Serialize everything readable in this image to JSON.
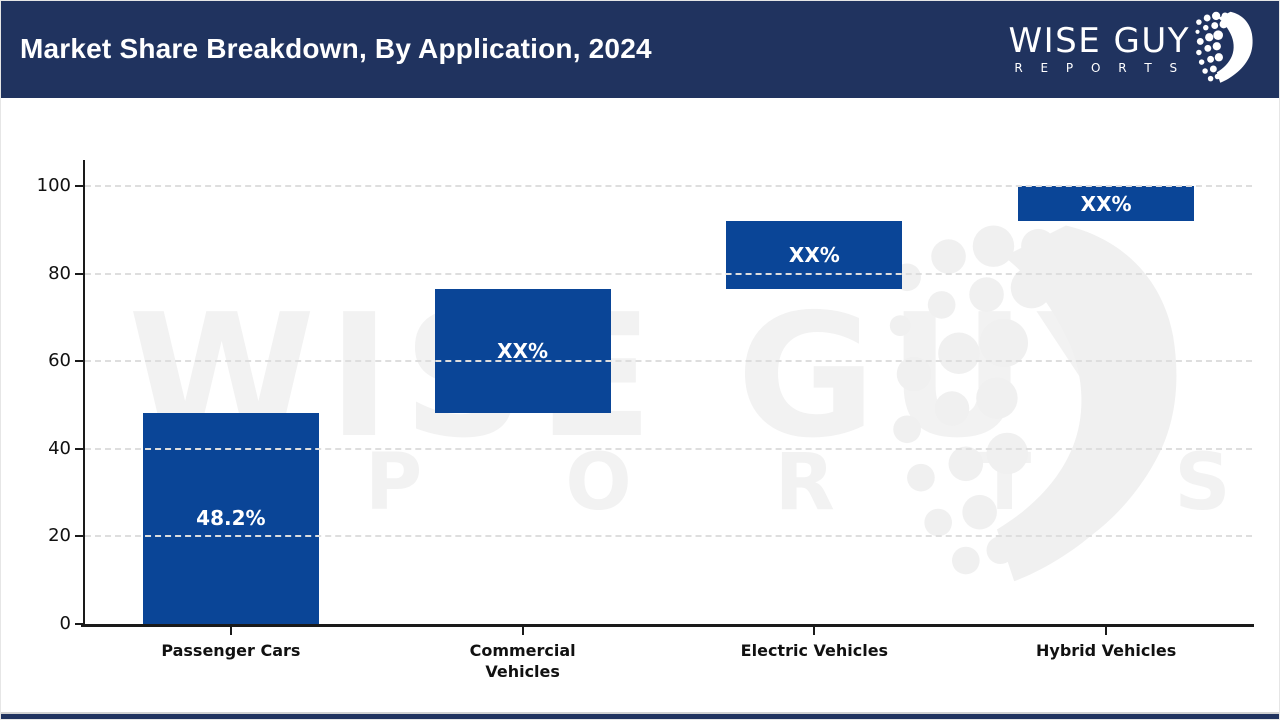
{
  "header": {
    "title": "Market Share Breakdown, By Application, 2024",
    "bg_color": "#20335f",
    "text_color": "#ffffff",
    "logo": {
      "line1": "WISE GUY",
      "line2": "R E P O R T S",
      "icon": "face-dots-icon"
    }
  },
  "watermark": {
    "line1": "WISE GUY",
    "line2": "P O R T S",
    "icon": "face-dots-icon"
  },
  "chart_data": {
    "type": "bar",
    "subtype": "waterfall",
    "title": "Market Share Breakdown, By Application, 2024",
    "categories": [
      "Passenger Cars",
      "Commercial\nVehicles",
      "Electric Vehicles",
      "Hybrid Vehicles"
    ],
    "segments": [
      {
        "category": "Passenger Cars",
        "label": "48.2%",
        "start": 0,
        "end": 48.2
      },
      {
        "category": "Commercial Vehicles",
        "label": "XX%",
        "start": 48.2,
        "end": 76.4
      },
      {
        "category": "Electric Vehicles",
        "label": "XX%",
        "start": 76.4,
        "end": 92.0
      },
      {
        "category": "Hybrid Vehicles",
        "label": "XX%",
        "start": 92.0,
        "end": 100.0
      }
    ],
    "yticks": [
      0,
      20,
      40,
      60,
      80,
      100
    ],
    "ylim": [
      0,
      108
    ],
    "xlabel": "",
    "ylabel": "",
    "grid": "horizontal-dashed",
    "legend": "none",
    "bar_color": "#0a4597",
    "bar_label_color": "#ffffff",
    "axis_color": "#1a1a1a",
    "grid_color": "#dedede"
  }
}
